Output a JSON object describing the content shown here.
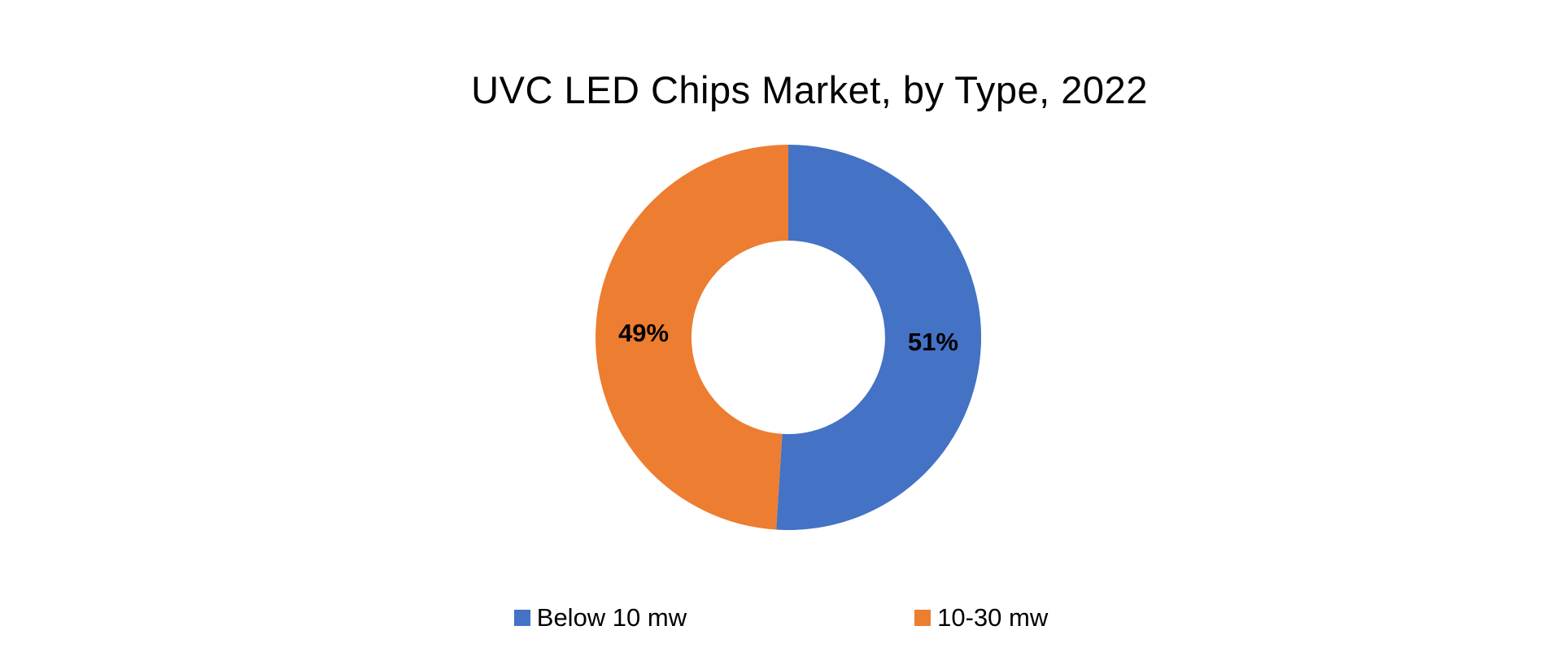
{
  "chart_data": {
    "type": "pie",
    "subtype": "donut",
    "title": "UVC LED Chips Market, by Type, 2022",
    "categories": [
      "Below 10 mw",
      "10-30 mw"
    ],
    "values": [
      51,
      49
    ],
    "labels": [
      "51%",
      "49%"
    ],
    "colors": [
      "#4472C4",
      "#ED7D31"
    ],
    "label_color": "#000000",
    "background": "#FFFFFF",
    "start_angle_deg": 0,
    "direction": "clockwise",
    "inner_radius_ratio": 0.5,
    "legend_position": "bottom"
  }
}
